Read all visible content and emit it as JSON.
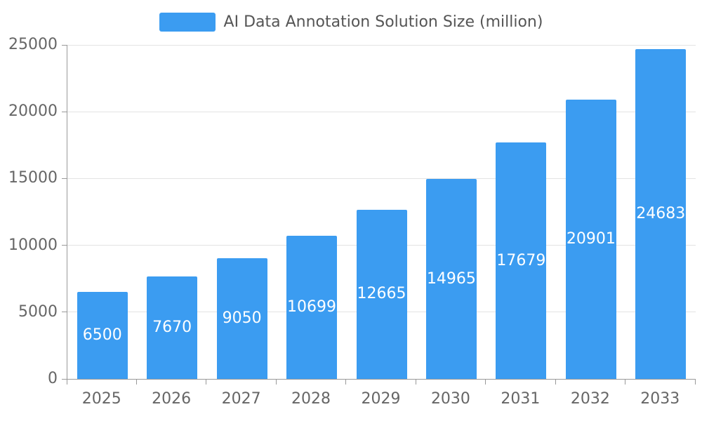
{
  "legend": {
    "label": "AI Data Annotation Solution Size (million)"
  },
  "chart_data": {
    "type": "bar",
    "title": "AI Data Annotation Solution Size (million)",
    "categories": [
      "2025",
      "2026",
      "2027",
      "2028",
      "2029",
      "2030",
      "2031",
      "2032",
      "2033"
    ],
    "values": [
      6500,
      7670,
      9050,
      10699,
      12665,
      14965,
      17679,
      20901,
      24683
    ],
    "xlabel": "",
    "ylabel": "",
    "ylim": [
      0,
      25000
    ],
    "yticks": [
      0,
      5000,
      10000,
      15000,
      20000,
      25000
    ],
    "grid": true,
    "legend_position": "top-center",
    "bar_color": "#3b9cf1",
    "bar_label_color": "#ffffff",
    "axis_text_color": "#666666",
    "grid_color": "#e3e3e3",
    "axis_line_color": "#999999"
  }
}
